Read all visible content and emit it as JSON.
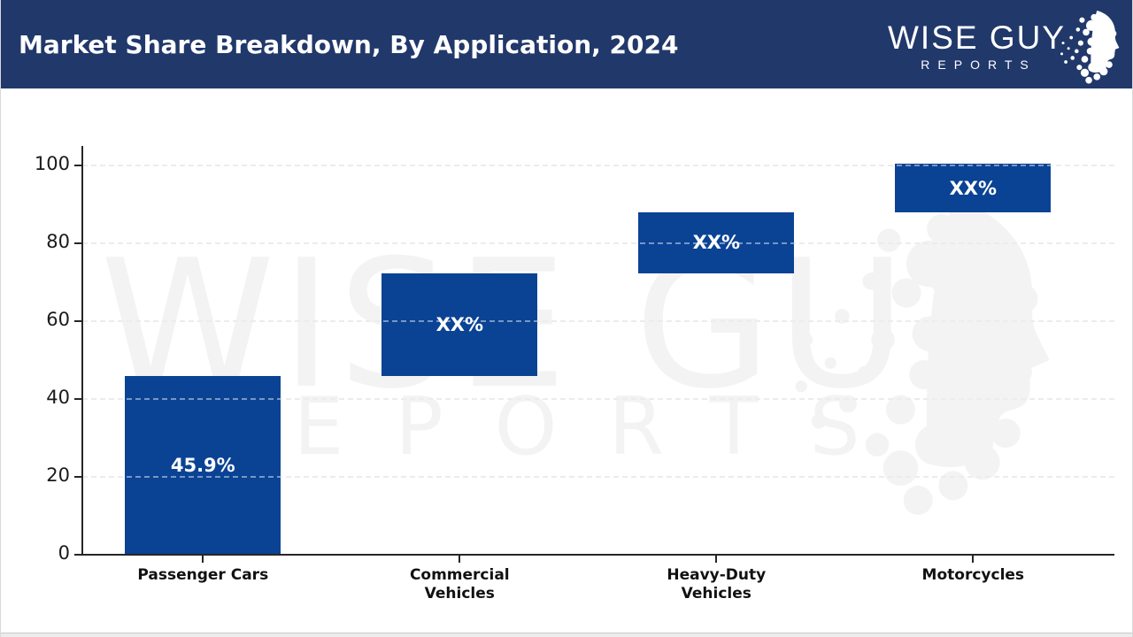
{
  "header": {
    "title": "Market Share Breakdown, By Application, 2024",
    "brand_line1": "WISE GUY",
    "brand_line2": "REPORTS"
  },
  "watermark": {
    "line1": "WISE GUY",
    "line2": "REPORTS"
  },
  "colors": {
    "header_bg": "#21386b",
    "bar_blue": "#0a4394",
    "axis": "#262626",
    "gridline": "#dcdcdc",
    "watermark": "#f3f3f3",
    "label_on_bar": "#ffffff"
  },
  "chart_data": {
    "type": "bar",
    "subtype": "waterfall",
    "title": "Market Share Breakdown, By Application, 2024",
    "xlabel": "",
    "ylabel": "",
    "ylim": [
      0,
      100
    ],
    "yticks": [
      0,
      20,
      40,
      60,
      80,
      100
    ],
    "grid": true,
    "grid_style": "dashed",
    "legend": false,
    "categories": [
      "Passenger Cars",
      "Commercial Vehicles",
      "Heavy-Duty Vehicles",
      "Motorcycles"
    ],
    "category_label_lines": [
      [
        "Passenger Cars"
      ],
      [
        "Commercial",
        "Vehicles"
      ],
      [
        "Heavy-Duty",
        "Vehicles"
      ],
      [
        "Motorcycles"
      ]
    ],
    "segments": [
      {
        "category": "Passenger Cars",
        "start": 0.0,
        "end": 45.9,
        "value": 45.9,
        "label": "45.9%"
      },
      {
        "category": "Commercial Vehicles",
        "start": 45.9,
        "end": 72.3,
        "value": 26.4,
        "label": "XX%"
      },
      {
        "category": "Heavy-Duty Vehicles",
        "start": 72.3,
        "end": 88.0,
        "value": 15.7,
        "label": "XX%"
      },
      {
        "category": "Motorcycles",
        "start": 88.0,
        "end": 100.4,
        "value": 12.4,
        "label": "XX%"
      }
    ]
  }
}
